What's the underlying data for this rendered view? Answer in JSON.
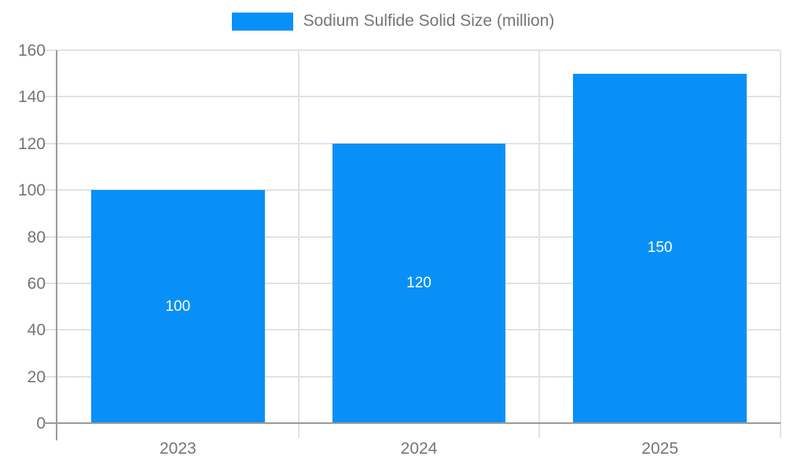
{
  "legend": {
    "label": "Sodium Sulfide Solid Size (million)"
  },
  "chart_data": {
    "type": "bar",
    "title": "Sodium Sulfide Solid Size (million)",
    "categories": [
      "2023",
      "2024",
      "2025"
    ],
    "values": [
      100,
      120,
      150
    ],
    "xlabel": "",
    "ylabel": "",
    "ylim": [
      0,
      160
    ],
    "ytick_step": 20,
    "grid": true,
    "legend_position": "top-center",
    "bar_labels": [
      "100",
      "120",
      "150"
    ],
    "colors": {
      "bar": "#0990F8",
      "axis_line": "#9a9a9a",
      "grid_line": "#e2e2e2",
      "tick_text": "#757575",
      "bar_label_text": "#ffffff",
      "background": "#ffffff"
    }
  }
}
